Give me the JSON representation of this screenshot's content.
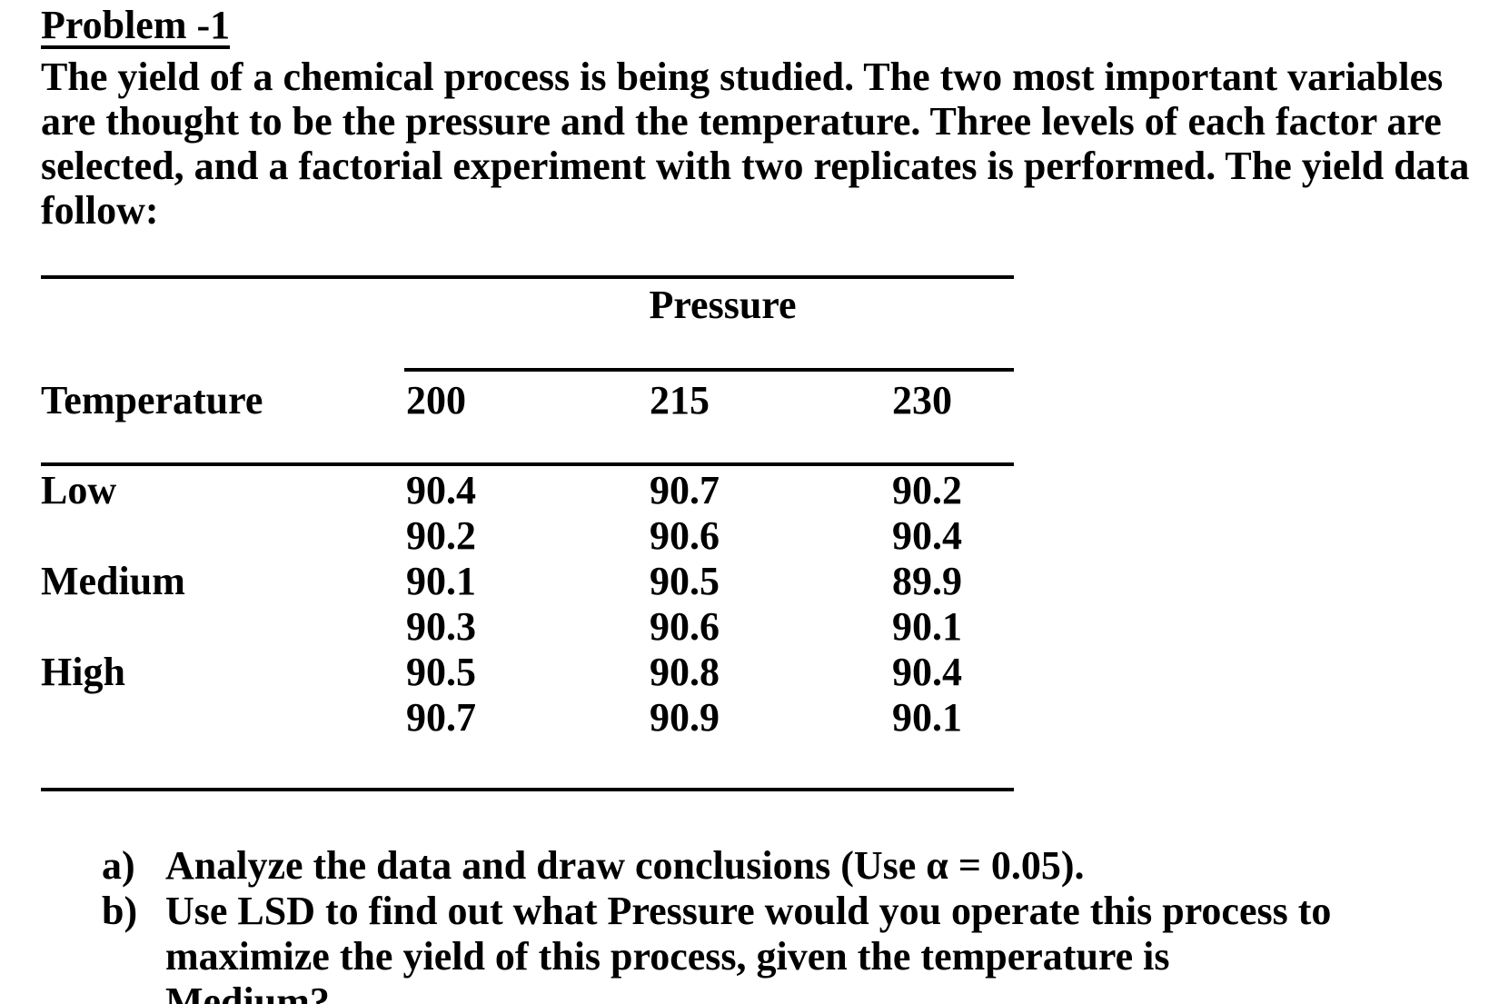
{
  "document": {
    "title": "Problem -1",
    "description": "The yield of a chemical process is being studied. The two most important variables are thought to be the pressure and the temperature. Three levels of each factor are selected, and a factorial experiment with two replicates is performed. The yield data follow:",
    "table": {
      "group_header": "Pressure",
      "row_axis_label": "Temperature",
      "pressure_levels": [
        "200",
        "215",
        "230"
      ],
      "temperature_levels": [
        "Low",
        "Medium",
        "High"
      ],
      "rows": [
        {
          "label": "Low",
          "rep1": [
            "90.4",
            "90.7",
            "90.2"
          ],
          "rep2": [
            "90.2",
            "90.6",
            "90.4"
          ]
        },
        {
          "label": "Medium",
          "rep1": [
            "90.1",
            "90.5",
            "89.9"
          ],
          "rep2": [
            "90.3",
            "90.6",
            "90.1"
          ]
        },
        {
          "label": "High",
          "rep1": [
            "90.5",
            "90.8",
            "90.4"
          ],
          "rep2": [
            "90.7",
            "90.9",
            "90.1"
          ]
        }
      ]
    },
    "questions": [
      {
        "marker": "a)",
        "text": "Analyze the data and draw conclusions (Use α = 0.05)."
      },
      {
        "marker": "b)",
        "text": "Use LSD to find out what Pressure would you operate this process to maximize the yield of this process, given the temperature is Medium?"
      }
    ]
  }
}
